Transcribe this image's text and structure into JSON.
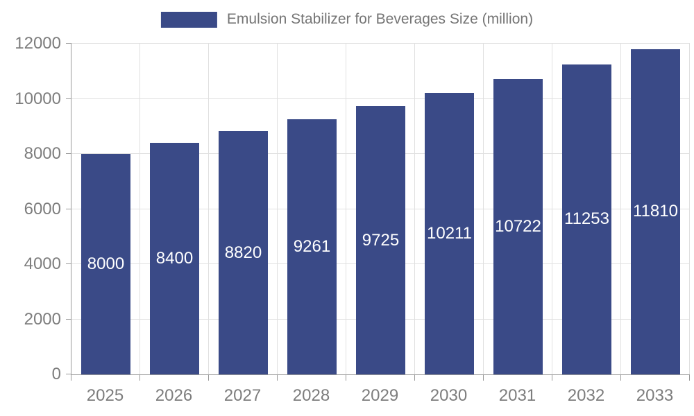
{
  "legend": {
    "label": "Emulsion Stabilizer for Beverages Size (million)"
  },
  "colors": {
    "background": "#FFFFFF",
    "bar": "#3A4A87",
    "axis_line": "#999999",
    "tick_line": "#999999",
    "grid_line": "#E0E0E0",
    "axis_text": "#7D7D7D",
    "legend_text": "#757575",
    "bar_label_text": "#FFFFFF"
  },
  "chart_data": {
    "type": "bar",
    "title": "Emulsion Stabilizer for Beverages Size (million)",
    "categories": [
      "2025",
      "2026",
      "2027",
      "2028",
      "2029",
      "2030",
      "2031",
      "2032",
      "2033"
    ],
    "values": [
      8000,
      8400,
      8820,
      9261,
      9725,
      10211,
      10722,
      11253,
      11810
    ],
    "xlabel": "",
    "ylabel": "",
    "ylim": [
      0,
      12000
    ],
    "ytick_interval": 2000,
    "ytick_labels": [
      "0",
      "2000",
      "4000",
      "6000",
      "8000",
      "10000",
      "12000"
    ],
    "grid": true,
    "legend_position": "top-center",
    "bar_labels_position": "inside-middle"
  }
}
